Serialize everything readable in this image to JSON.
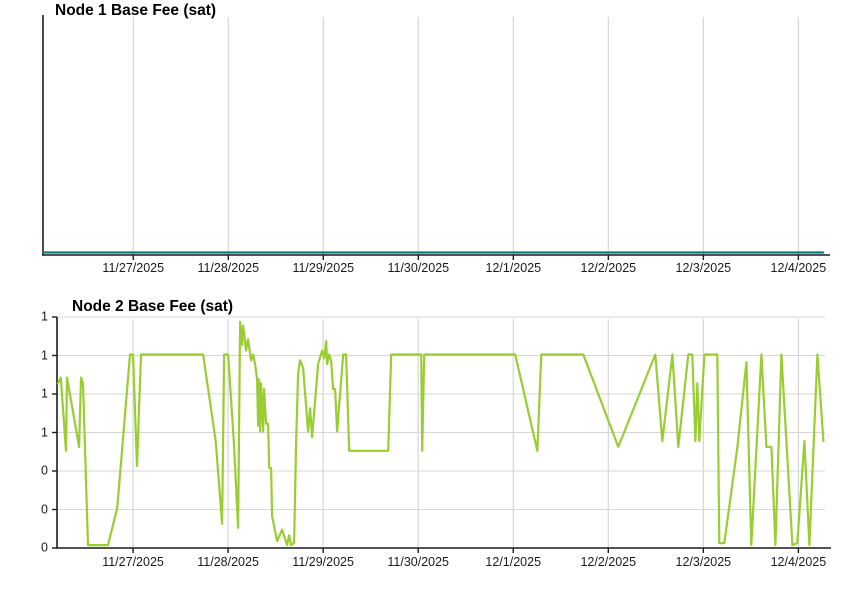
{
  "page": {
    "background": "#ffffff"
  },
  "chart_data": [
    {
      "type": "line",
      "title": "Node 1 Base Fee (sat)",
      "xlabel": "",
      "ylabel": "",
      "x_tick_labels": [
        "11/27/2025",
        "11/28/2025",
        "11/29/2025",
        "11/30/2025",
        "12/1/2025",
        "12/2/2025",
        "12/3/2025",
        "12/4/2025"
      ],
      "x_tick_days": [
        1,
        2,
        3,
        4,
        5,
        6,
        7,
        8
      ],
      "x_domain_days": [
        0.05,
        8.27
      ],
      "y_tick_labels": [],
      "y_tick_values": [],
      "ylim": [
        0,
        1
      ],
      "grid": "vertical-only",
      "legend": "none",
      "series": [
        {
          "name": "node1-base-fee",
          "color": "#0d7a80",
          "points": [
            [
              0.05,
              0
            ],
            [
              8.26,
              0
            ]
          ]
        }
      ]
    },
    {
      "type": "line",
      "title": "Node 2 Base Fee (sat)",
      "xlabel": "",
      "ylabel": "",
      "x_tick_labels": [
        "11/27/2025",
        "11/28/2025",
        "11/29/2025",
        "11/30/2025",
        "12/1/2025",
        "12/2/2025",
        "12/3/2025",
        "12/4/2025"
      ],
      "x_tick_days": [
        1,
        2,
        3,
        4,
        5,
        6,
        7,
        8
      ],
      "x_domain_days": [
        0.2,
        8.28
      ],
      "y_tick_labels": [
        "1",
        "1",
        "1",
        "1",
        "0",
        "0",
        "0"
      ],
      "y_tick_values": [
        1.2,
        1.0,
        0.8,
        0.6,
        0.4,
        0.2,
        0
      ],
      "ylim": [
        0,
        1.2
      ],
      "grid": "both",
      "legend": "none",
      "series": [
        {
          "name": "node2-base-fee",
          "color": "#9acd32",
          "points": [
            [
              0.21,
              0.85
            ],
            [
              0.24,
              0.88
            ],
            [
              0.295,
              0.5
            ],
            [
              0.305,
              0.88
            ],
            [
              0.432,
              0.52
            ],
            [
              0.453,
              0.88
            ],
            [
              0.474,
              0.85
            ],
            [
              0.526,
              0.01
            ],
            [
              0.737,
              0.01
            ],
            [
              0.832,
              0.2
            ],
            [
              0.842,
              0.25
            ],
            [
              0.968,
              1.0
            ],
            [
              1.0,
              1.0
            ],
            [
              1.042,
              0.42
            ],
            [
              1.084,
              1.0
            ],
            [
              1.737,
              1.0
            ],
            [
              1.87,
              0.55
            ],
            [
              1.937,
              0.12
            ],
            [
              1.958,
              1.0
            ],
            [
              2.0,
              1.0
            ],
            [
              2.06,
              0.55
            ],
            [
              2.105,
              0.1
            ],
            [
              2.126,
              1.17
            ],
            [
              2.147,
              1.05
            ],
            [
              2.158,
              1.15
            ],
            [
              2.19,
              1.02
            ],
            [
              2.21,
              1.08
            ],
            [
              2.242,
              0.97
            ],
            [
              2.263,
              1.0
            ],
            [
              2.284,
              0.95
            ],
            [
              2.305,
              0.87
            ],
            [
              2.316,
              0.63
            ],
            [
              2.326,
              0.87
            ],
            [
              2.337,
              0.6
            ],
            [
              2.347,
              0.85
            ],
            [
              2.368,
              0.6
            ],
            [
              2.379,
              0.82
            ],
            [
              2.4,
              0.64
            ],
            [
              2.421,
              0.64
            ],
            [
              2.432,
              0.41
            ],
            [
              2.453,
              0.41
            ],
            [
              2.463,
              0.16
            ],
            [
              2.516,
              0.03
            ],
            [
              2.568,
              0.09
            ],
            [
              2.621,
              0.01
            ],
            [
              2.642,
              0.06
            ],
            [
              2.663,
              0.01
            ],
            [
              2.695,
              0.02
            ],
            [
              2.716,
              0.54
            ],
            [
              2.737,
              0.9
            ],
            [
              2.758,
              0.97
            ],
            [
              2.789,
              0.93
            ],
            [
              2.842,
              0.6
            ],
            [
              2.863,
              0.72
            ],
            [
              2.884,
              0.57
            ],
            [
              2.947,
              0.95
            ],
            [
              2.989,
              1.02
            ],
            [
              3.011,
              0.98
            ],
            [
              3.032,
              1.07
            ],
            [
              3.042,
              0.95
            ],
            [
              3.063,
              1.0
            ],
            [
              3.084,
              0.97
            ],
            [
              3.105,
              0.82
            ],
            [
              3.126,
              0.82
            ],
            [
              3.147,
              0.6
            ],
            [
              3.211,
              1.0
            ],
            [
              3.242,
              1.0
            ],
            [
              3.274,
              0.5
            ],
            [
              3.684,
              0.5
            ],
            [
              3.716,
              1.0
            ],
            [
              4.032,
              1.0
            ],
            [
              4.042,
              0.5
            ],
            [
              4.063,
              1.0
            ],
            [
              5.021,
              1.0
            ],
            [
              5.253,
              0.5
            ],
            [
              5.295,
              1.0
            ],
            [
              5.737,
              1.0
            ],
            [
              6.105,
              0.52
            ],
            [
              6.495,
              1.0
            ],
            [
              6.568,
              0.55
            ],
            [
              6.674,
              1.0
            ],
            [
              6.737,
              0.52
            ],
            [
              6.842,
              1.0
            ],
            [
              6.884,
              1.0
            ],
            [
              6.916,
              0.55
            ],
            [
              6.937,
              0.85
            ],
            [
              6.958,
              0.55
            ],
            [
              7.011,
              1.0
            ],
            [
              7.147,
              1.0
            ],
            [
              7.168,
              0.02
            ],
            [
              7.221,
              0.02
            ],
            [
              7.358,
              0.52
            ],
            [
              7.453,
              0.96
            ],
            [
              7.505,
              0.01
            ],
            [
              7.611,
              1.0
            ],
            [
              7.663,
              0.52
            ],
            [
              7.716,
              0.52
            ],
            [
              7.758,
              0.01
            ],
            [
              7.821,
              1.0
            ],
            [
              7.937,
              0.01
            ],
            [
              7.989,
              0.02
            ],
            [
              8.063,
              0.55
            ],
            [
              8.116,
              0.01
            ],
            [
              8.2,
              1.0
            ],
            [
              8.263,
              0.55
            ]
          ]
        }
      ]
    }
  ]
}
